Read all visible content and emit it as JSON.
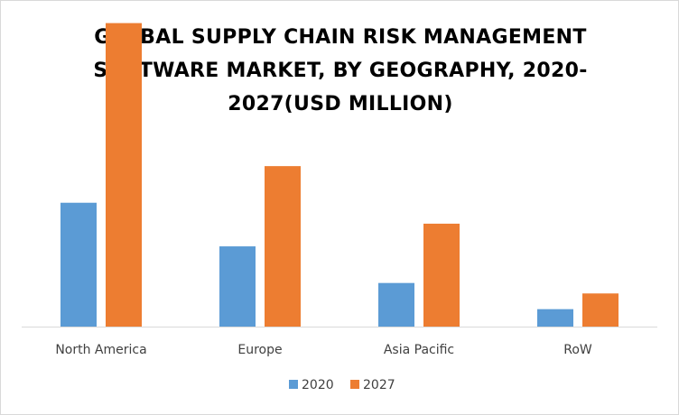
{
  "chart_data": {
    "type": "bar",
    "title_lines": [
      "GLOBAL SUPPLY CHAIN RISK MANAGEMENT",
      "SOFTWARE MARKET, BY GEOGRAPHY, 2020-",
      "2027(USD MILLION)"
    ],
    "categories": [
      "North America",
      "Europe",
      "Asia Pacific",
      "RoW"
    ],
    "series": [
      {
        "name": "2020",
        "color": "#5b9bd5",
        "values": [
          71,
          46,
          25,
          10
        ]
      },
      {
        "name": "2027",
        "color": "#ed7d31",
        "values": [
          174,
          92,
          59,
          19
        ]
      }
    ],
    "ylim": [
      0,
      180
    ],
    "grid": false,
    "legend_position": "bottom"
  }
}
